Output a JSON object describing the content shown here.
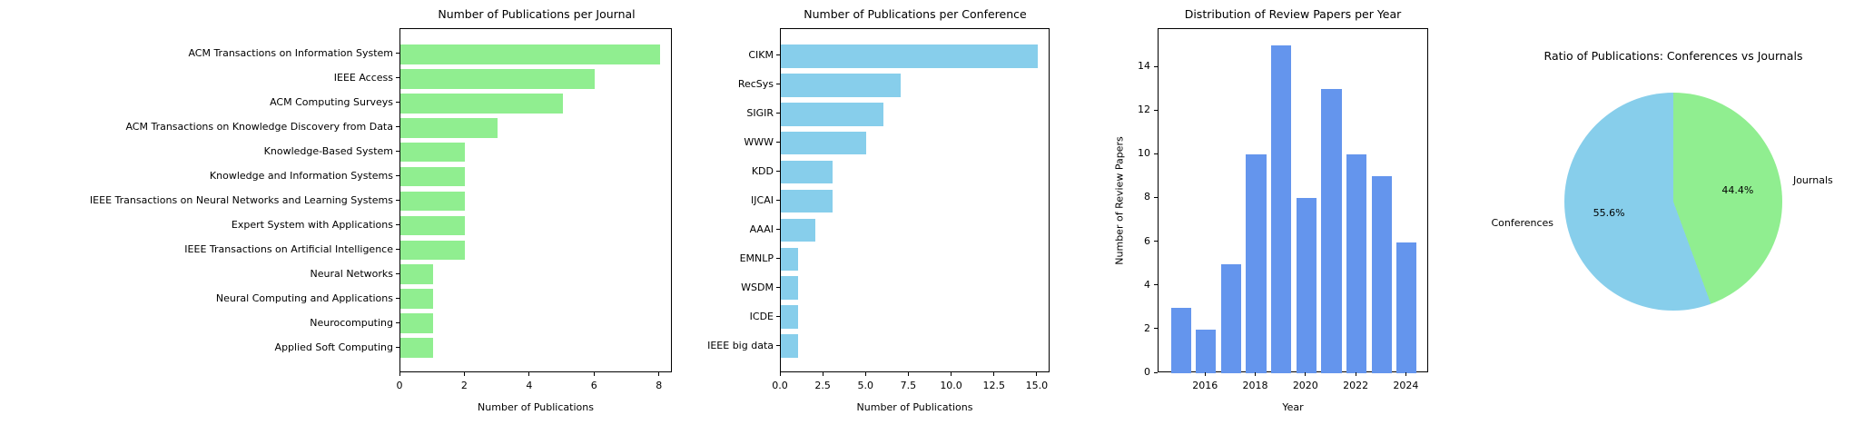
{
  "chart_data": [
    {
      "type": "bar",
      "orientation": "horizontal",
      "title": "Number of Publications per Journal",
      "xlabel": "Number of Publications",
      "bar_color": "#90EE90",
      "categories": [
        "ACM Transactions on Information System",
        "IEEE Access",
        "ACM Computing Surveys",
        "ACM Transactions on Knowledge Discovery from Data",
        "Knowledge-Based System",
        "Knowledge and Information Systems",
        "IEEE Transactions on Neural Networks and Learning Systems",
        "Expert System with Applications",
        "IEEE Transactions on Artificial Intelligence",
        "Neural Networks",
        "Neural Computing and Applications",
        "Neurocomputing",
        "Applied Soft Computing"
      ],
      "values": [
        8,
        6,
        5,
        3,
        2,
        2,
        2,
        2,
        2,
        1,
        1,
        1,
        1
      ],
      "xlim": [
        0,
        8.4
      ],
      "xticks": [
        0,
        2,
        4,
        6,
        8
      ],
      "xtick_labels": [
        "0",
        "2",
        "4",
        "6",
        "8"
      ],
      "grid": false
    },
    {
      "type": "bar",
      "orientation": "horizontal",
      "title": "Number of Publications per Conference",
      "xlabel": "Number of Publications",
      "bar_color": "#87CEEB",
      "categories": [
        "CIKM",
        "RecSys",
        "SIGIR",
        "WWW",
        "KDD",
        "IJCAI",
        "AAAI",
        "EMNLP",
        "WSDM",
        "ICDE",
        "IEEE big data"
      ],
      "values": [
        15,
        7,
        6,
        5,
        3,
        3,
        2,
        1,
        1,
        1,
        1
      ],
      "xlim": [
        0,
        15.75
      ],
      "xticks": [
        0,
        2.5,
        5,
        7.5,
        10,
        12.5,
        15
      ],
      "xtick_labels": [
        "0.0",
        "2.5",
        "5.0",
        "7.5",
        "10.0",
        "12.5",
        "15.0"
      ],
      "grid": false
    },
    {
      "type": "bar",
      "orientation": "vertical",
      "title": "Distribution of Review Papers per Year",
      "xlabel": "Year",
      "ylabel": "Number of Review Papers",
      "bar_color": "#6495ED",
      "categories": [
        2015,
        2016,
        2017,
        2018,
        2019,
        2020,
        2021,
        2022,
        2023,
        2024
      ],
      "values": [
        3,
        2,
        5,
        10,
        15,
        8,
        13,
        10,
        9,
        6
      ],
      "ylim": [
        0,
        15.75
      ],
      "yticks": [
        0,
        2,
        4,
        6,
        8,
        10,
        12,
        14
      ],
      "xticks": [
        2016,
        2018,
        2020,
        2022,
        2024
      ],
      "grid": false
    },
    {
      "type": "pie",
      "title": "Ratio of Publications: Conferences vs Journals",
      "start_angle": "top",
      "direction": "clockwise",
      "slices": [
        {
          "label": "Journals",
          "pct": 44.4,
          "pct_label": "44.4%",
          "color": "#90EE90"
        },
        {
          "label": "Conferences",
          "pct": 55.6,
          "pct_label": "55.6%",
          "color": "#87CEEB"
        }
      ]
    }
  ]
}
